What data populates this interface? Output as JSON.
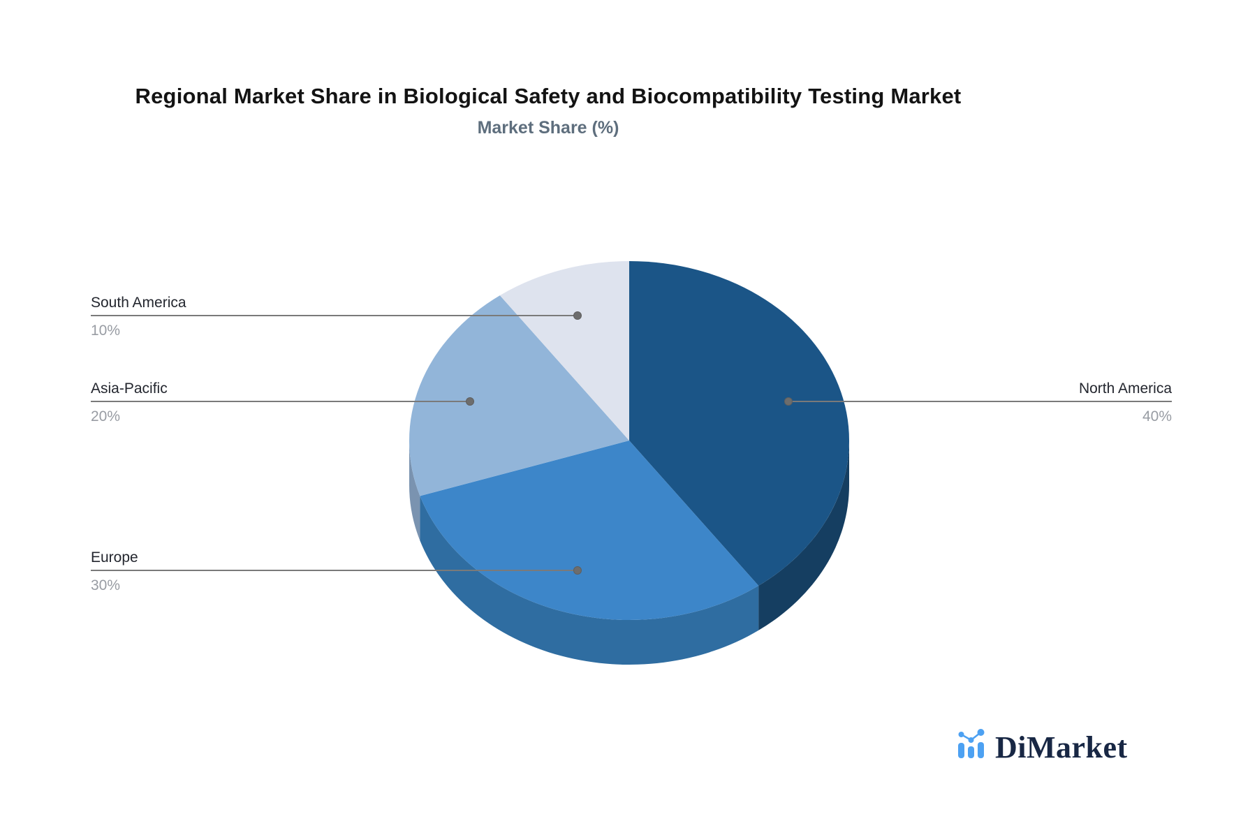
{
  "title": "Regional Market Share in Biological Safety and Biocompatibility Testing Market",
  "subtitle": "Market Share (%)",
  "chart_data": {
    "type": "pie",
    "style": "3d",
    "title": "Regional Market Share in Biological Safety and Biocompatibility Testing Market",
    "subtitle": "Market Share (%)",
    "unit": "%",
    "direction": "clockwise",
    "start_angle_deg": 0,
    "legend_position": "callout-labels",
    "slices": [
      {
        "label": "North America",
        "value": 40,
        "pct_label": "40%",
        "color": "#1b5587",
        "side_color": "#153e61"
      },
      {
        "label": "Europe",
        "value": 30,
        "pct_label": "30%",
        "color": "#3d86c9",
        "side_color": "#2f6da1"
      },
      {
        "label": "Asia-Pacific",
        "value": 20,
        "pct_label": "20%",
        "color": "#92b5d9",
        "side_color": "#7a93b0"
      },
      {
        "label": "South America",
        "value": 10,
        "pct_label": "10%",
        "color": "#dee3ee",
        "side_color": "#c5ccd9"
      }
    ]
  },
  "branding": {
    "logo_text": "DiMarket"
  },
  "colors": {
    "background": "#ffffff",
    "title": "#131313",
    "subtitle": "#5e6e7d",
    "label_text": "#23262e",
    "pct_text": "#989ca3",
    "leader_line": "#7a7a7a",
    "leader_dot": "#6d6d6d",
    "logo_text": "#182744",
    "logo_icon": "#4da1f2"
  }
}
